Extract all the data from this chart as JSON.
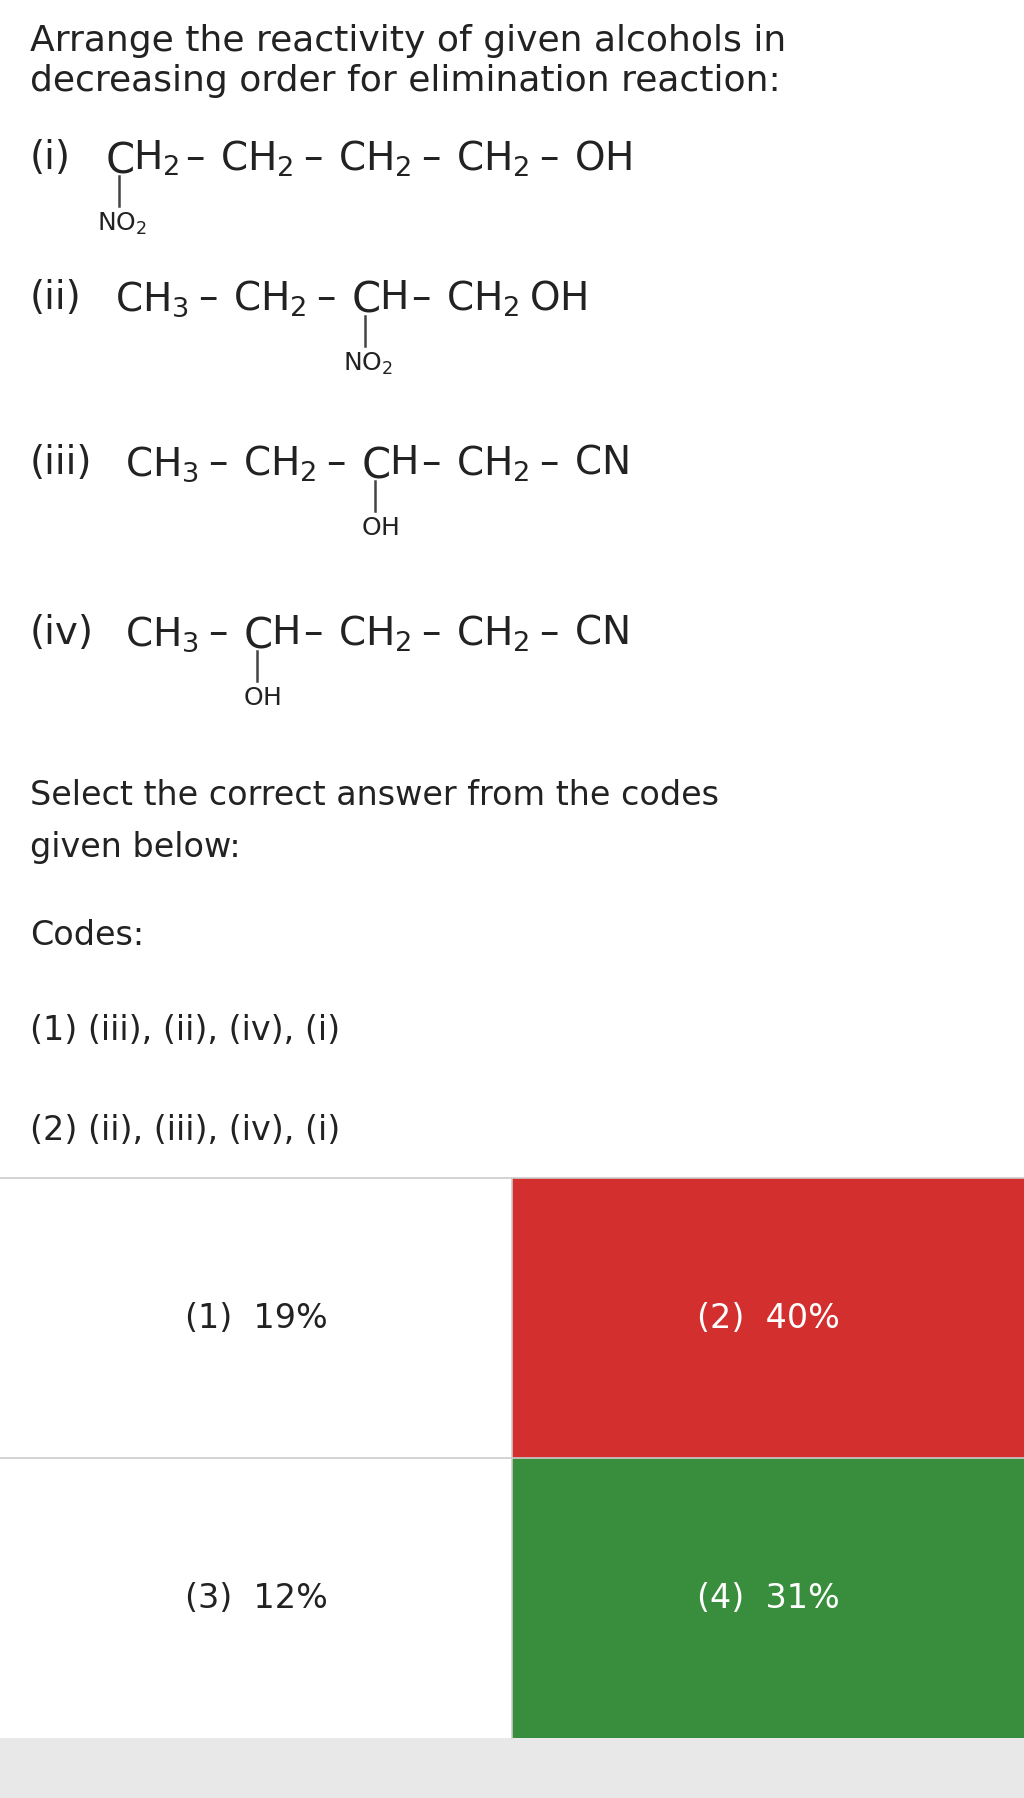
{
  "bg_color": "#ffffff",
  "dark_color": "#222222",
  "red_color": "#d32f2f",
  "green_color": "#388e3c",
  "white_color": "#ffffff",
  "gray_color": "#cccccc",
  "footer_color": "#e8e8e8",
  "font_size_title": 26,
  "font_size_compound": 28,
  "font_size_sub_compound": 18,
  "font_size_options": 24,
  "font_size_poll": 24,
  "title_line1": "Arrange the reactivity of given alcohols in",
  "title_line2": "decreasing order for elimination reaction:",
  "option1": "(1) (iii), (ii), (iv), (i)",
  "option2": "(2) (ii), (iii), (iv), (i)",
  "select_line1": "Select the correct answer from the codes",
  "select_line2": "given below:",
  "codes_label": "Codes:",
  "poll_label1": "(1)  19%",
  "poll_label2": "(2)  40%",
  "poll_label3": "(3)  12%",
  "poll_label4": "(4)  31%"
}
